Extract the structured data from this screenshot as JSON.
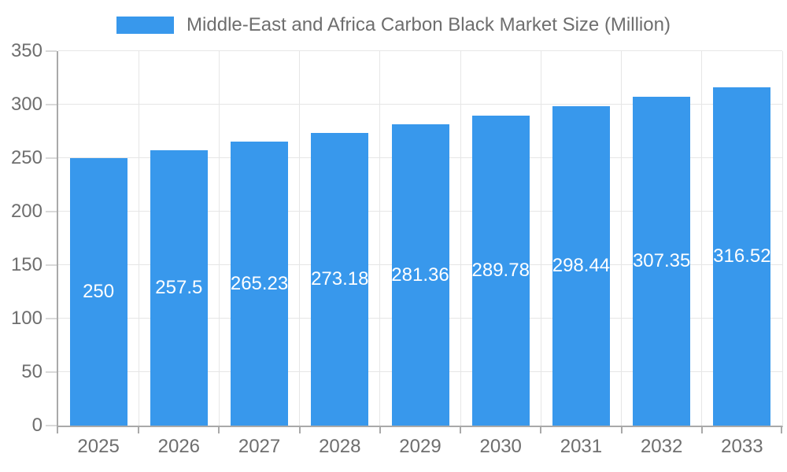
{
  "legend": {
    "swatch_color": "#3898ec"
  },
  "chart_data": {
    "type": "bar",
    "title": "Middle-East and Africa Carbon Black Market Size (Million)",
    "categories": [
      "2025",
      "2026",
      "2027",
      "2028",
      "2029",
      "2030",
      "2031",
      "2032",
      "2033"
    ],
    "values": [
      250,
      257.5,
      265.23,
      273.18,
      281.36,
      289.78,
      298.44,
      307.35,
      316.52
    ],
    "value_labels": [
      "250",
      "257.5",
      "265.23",
      "273.18",
      "281.36",
      "289.78",
      "298.44",
      "307.35",
      "316.52"
    ],
    "xlabel": "",
    "ylabel": "",
    "ylim": [
      0,
      350
    ],
    "yticks": [
      0,
      50,
      100,
      150,
      200,
      250,
      300,
      350
    ],
    "grid": true,
    "legend_position": "top",
    "bar_color": "#3898ec",
    "bar_label_color": "#ffffff"
  },
  "colors": {
    "bar": "#3898ec",
    "grid": "#e6e6e6",
    "axis": "#a9a9a9",
    "tick_minor": "#d9d9d9",
    "text": "#6e6e6e",
    "background": "#ffffff"
  }
}
